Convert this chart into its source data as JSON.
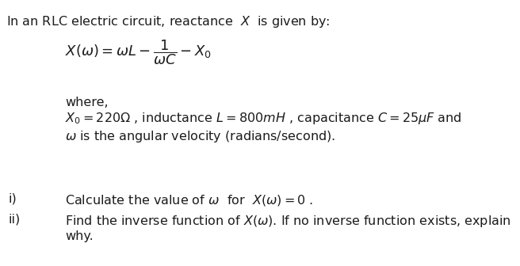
{
  "bg_color": "#ffffff",
  "text_color": "#1c1c1c",
  "figsize": [
    6.56,
    3.36
  ],
  "dpi": 100,
  "title_line": "In an RLC electric circuit, reactance  $X$  is given by:",
  "formula": "$X(\\omega) = \\omega L - \\dfrac{1}{\\omega C} - X_0$",
  "where_label": "where,",
  "where_line": "$X_0 = 220\\Omega$ , inductance $L = 800mH$ , capacitance $C = 25\\mu F$ and",
  "omega_line": "$\\omega$ is the angular velocity (radians/second).",
  "part_i_label": "i)",
  "part_i_text": "Calculate the value of $\\omega$  for  $X(\\omega) = 0$ .",
  "part_ii_label": "ii)",
  "part_ii_text1": "Find the inverse function of $X(\\omega)$. If no inverse function exists, explain",
  "part_ii_text2": "why.",
  "font_size_main": 11.5,
  "font_size_formula": 13.0,
  "indent_main": 0.13,
  "indent_label": 0.015
}
